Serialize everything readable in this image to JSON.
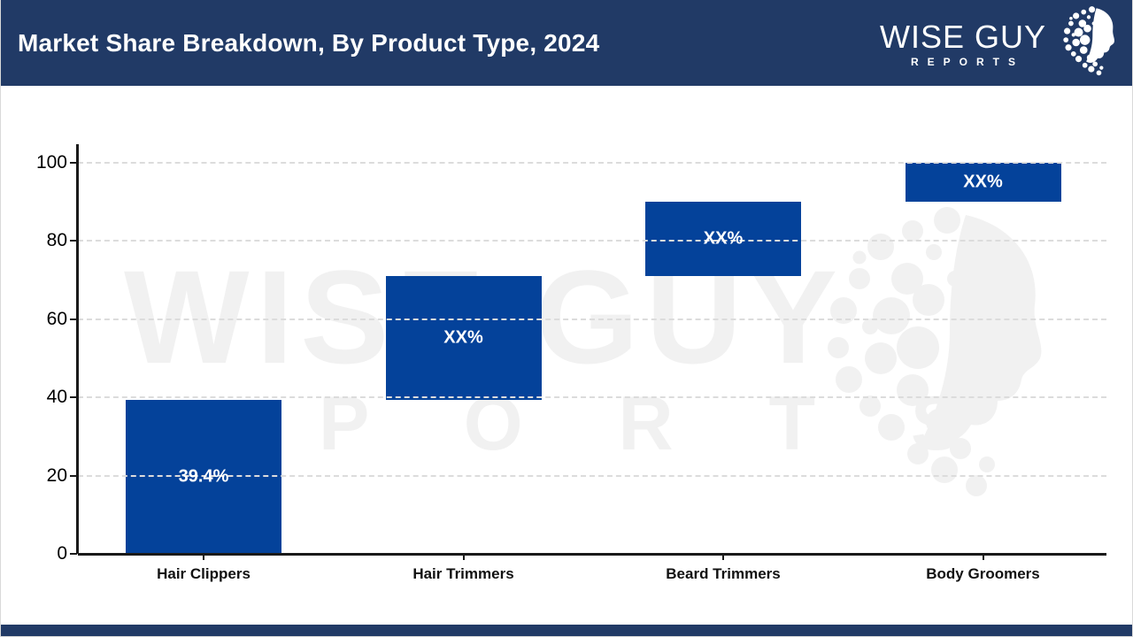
{
  "header": {
    "title": "Market Share Breakdown, By Product Type, 2024",
    "bg_color": "#213a66",
    "logo": {
      "line1": "WISE GUY",
      "line2": "REPORTS"
    }
  },
  "watermark": {
    "line1": "WISE GUY",
    "line2": "P O R T S"
  },
  "footer": {
    "bg_color": "#213a66"
  },
  "chart_data": {
    "type": "bar",
    "subtype": "waterfall",
    "title": "Market Share Breakdown, By Product Type, 2024",
    "categories": [
      "Hair Clippers",
      "Hair Trimmers",
      "Beard Trimmers",
      "Body Groomers"
    ],
    "segments": [
      {
        "category": "Hair Clippers",
        "start": 0,
        "end": 39.4,
        "label": "39.4%"
      },
      {
        "category": "Hair Trimmers",
        "start": 39.4,
        "end": 71,
        "label": "XX%"
      },
      {
        "category": "Beard Trimmers",
        "start": 71,
        "end": 90,
        "label": "XX%"
      },
      {
        "category": "Body Groomers",
        "start": 90,
        "end": 100,
        "label": "XX%"
      }
    ],
    "xlabel": "",
    "ylabel": "",
    "yticks": [
      0,
      20,
      40,
      60,
      80,
      100
    ],
    "ylim": [
      0,
      105
    ],
    "grid": "horizontal-dashed",
    "legend": "none",
    "bar_color": "#04429a",
    "bar_label_color": "#ffffff",
    "axis_color": "#1a1a1a",
    "grid_color": "#dcdcdc"
  }
}
